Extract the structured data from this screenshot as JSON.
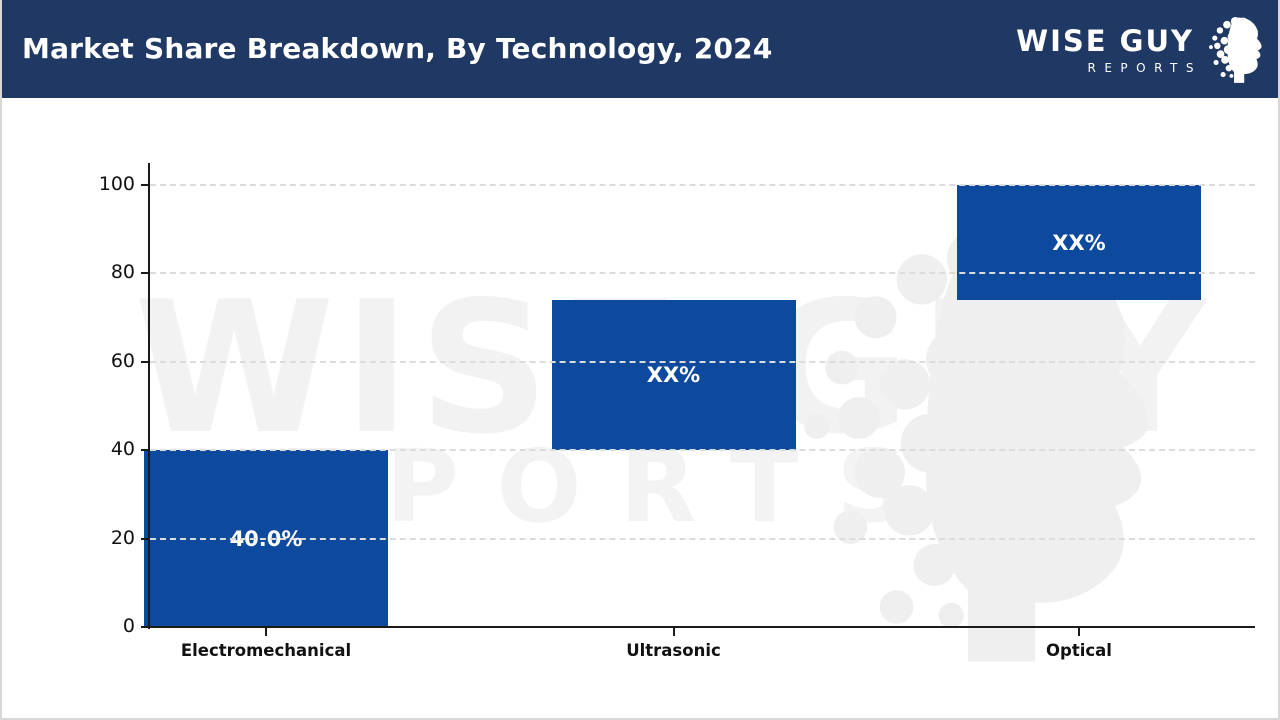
{
  "header": {
    "title": "Market Share Breakdown, By Technology, 2024",
    "logo": {
      "line1": "WISE GUY",
      "line2": "REPORTS"
    }
  },
  "watermark": {
    "line1": "WISE GUY",
    "line2": "REPORTS"
  },
  "chart_data": {
    "type": "bar",
    "variant": "floating-segment (waterfall-style market share breakdown)",
    "title": "Market Share Breakdown, By Technology, 2024",
    "categories": [
      "Electromechanical",
      "Ultrasonic",
      "Optical"
    ],
    "series": [
      {
        "name": "Market share segment",
        "segments": [
          {
            "category": "Electromechanical",
            "start": 0,
            "end": 40,
            "label": "40.0%"
          },
          {
            "category": "Ultrasonic",
            "start": 40,
            "end": 74,
            "label": "XX%"
          },
          {
            "category": "Optical",
            "start": 74,
            "end": 100,
            "label": "XX%"
          }
        ]
      }
    ],
    "xlabel": "",
    "ylabel": "",
    "yticks": [
      0,
      20,
      40,
      60,
      80,
      100
    ],
    "ylim": [
      0,
      105
    ],
    "grid": "dashed horizontal gridlines, drawn over bars",
    "legend": "none",
    "colors": {
      "bar": "#0d4a9e",
      "bar_label": "#ffffff",
      "header_bg": "#203864",
      "grid": "#dcdcdc",
      "axis": "#1a1a1a",
      "watermark": "#f2f2f2"
    }
  }
}
